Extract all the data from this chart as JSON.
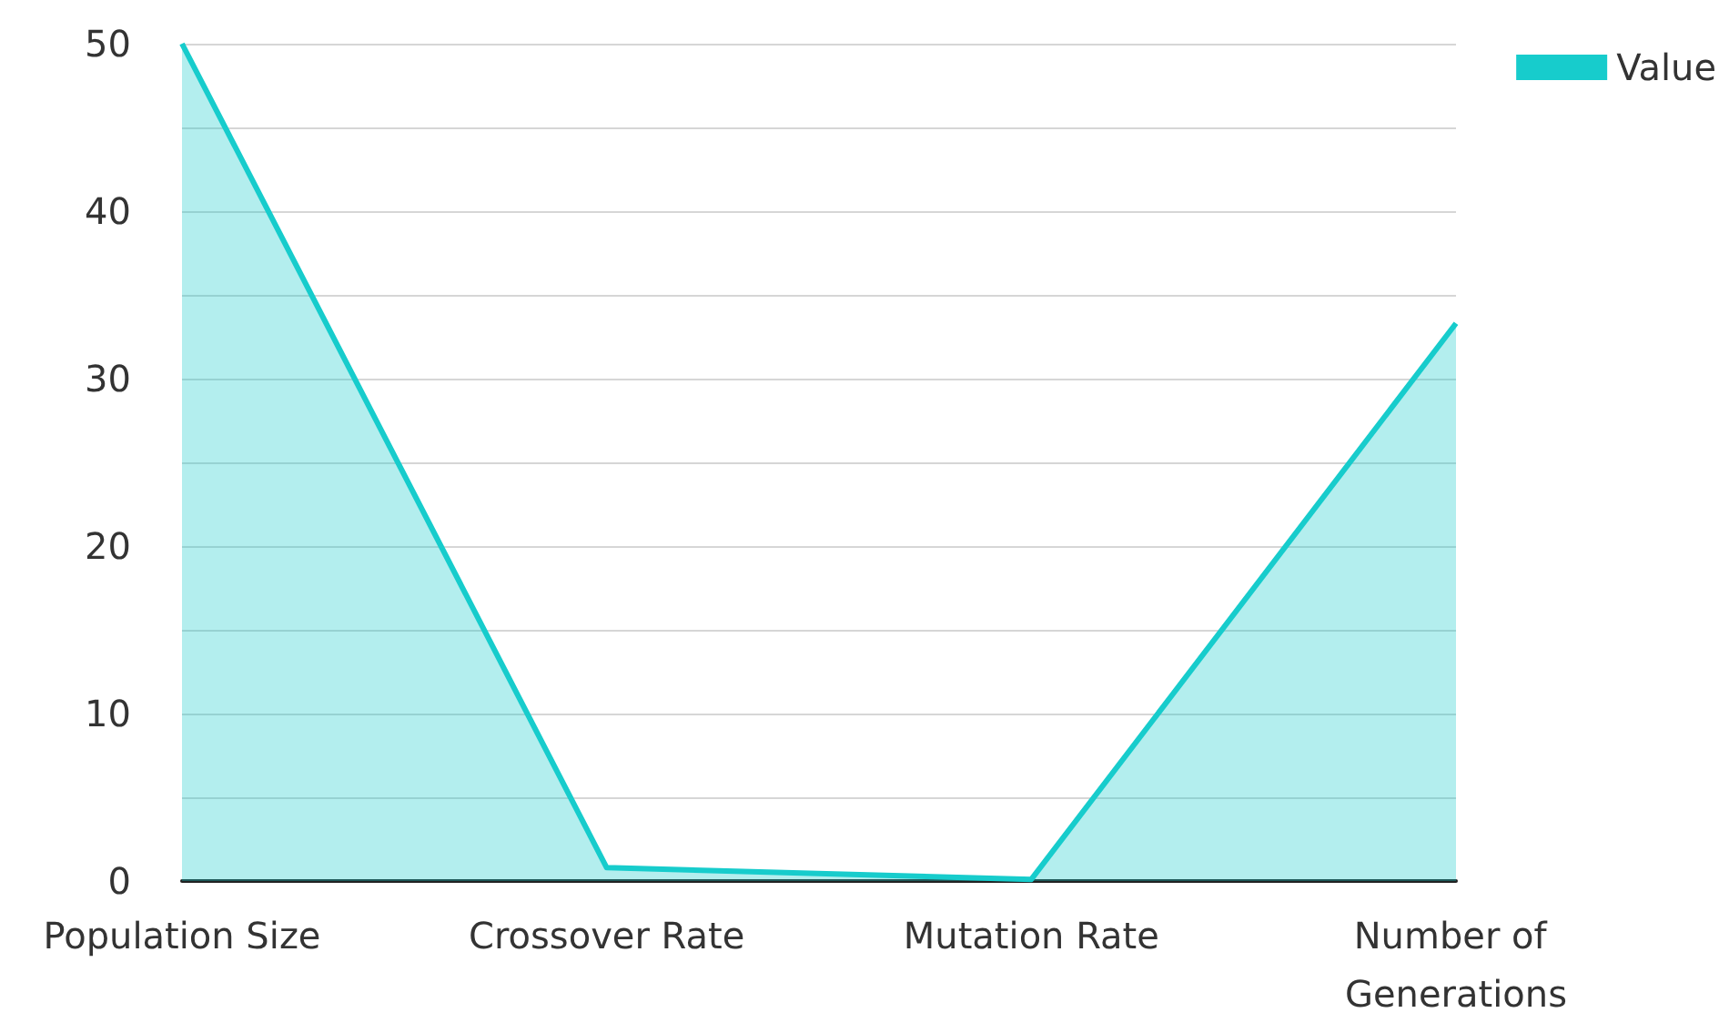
{
  "chart_data": {
    "type": "area",
    "categories": [
      "Population Size",
      "Crossover Rate",
      "Mutation Rate",
      "Number of Generations"
    ],
    "series": [
      {
        "name": "Value",
        "color": "#17cccc",
        "values": [
          50,
          0.8,
          0.1,
          33.3
        ]
      }
    ],
    "ylim": [
      0,
      50
    ],
    "yticks": [
      0,
      {
        "value": 5,
        "label": null
      },
      10,
      {
        "value": 15,
        "label": null
      },
      20,
      {
        "value": 25,
        "label": null
      },
      30,
      {
        "value": 35,
        "label": null
      },
      40,
      {
        "value": 45,
        "label": null
      },
      50
    ],
    "grid": "y",
    "legend": "top right",
    "marker": "none"
  }
}
